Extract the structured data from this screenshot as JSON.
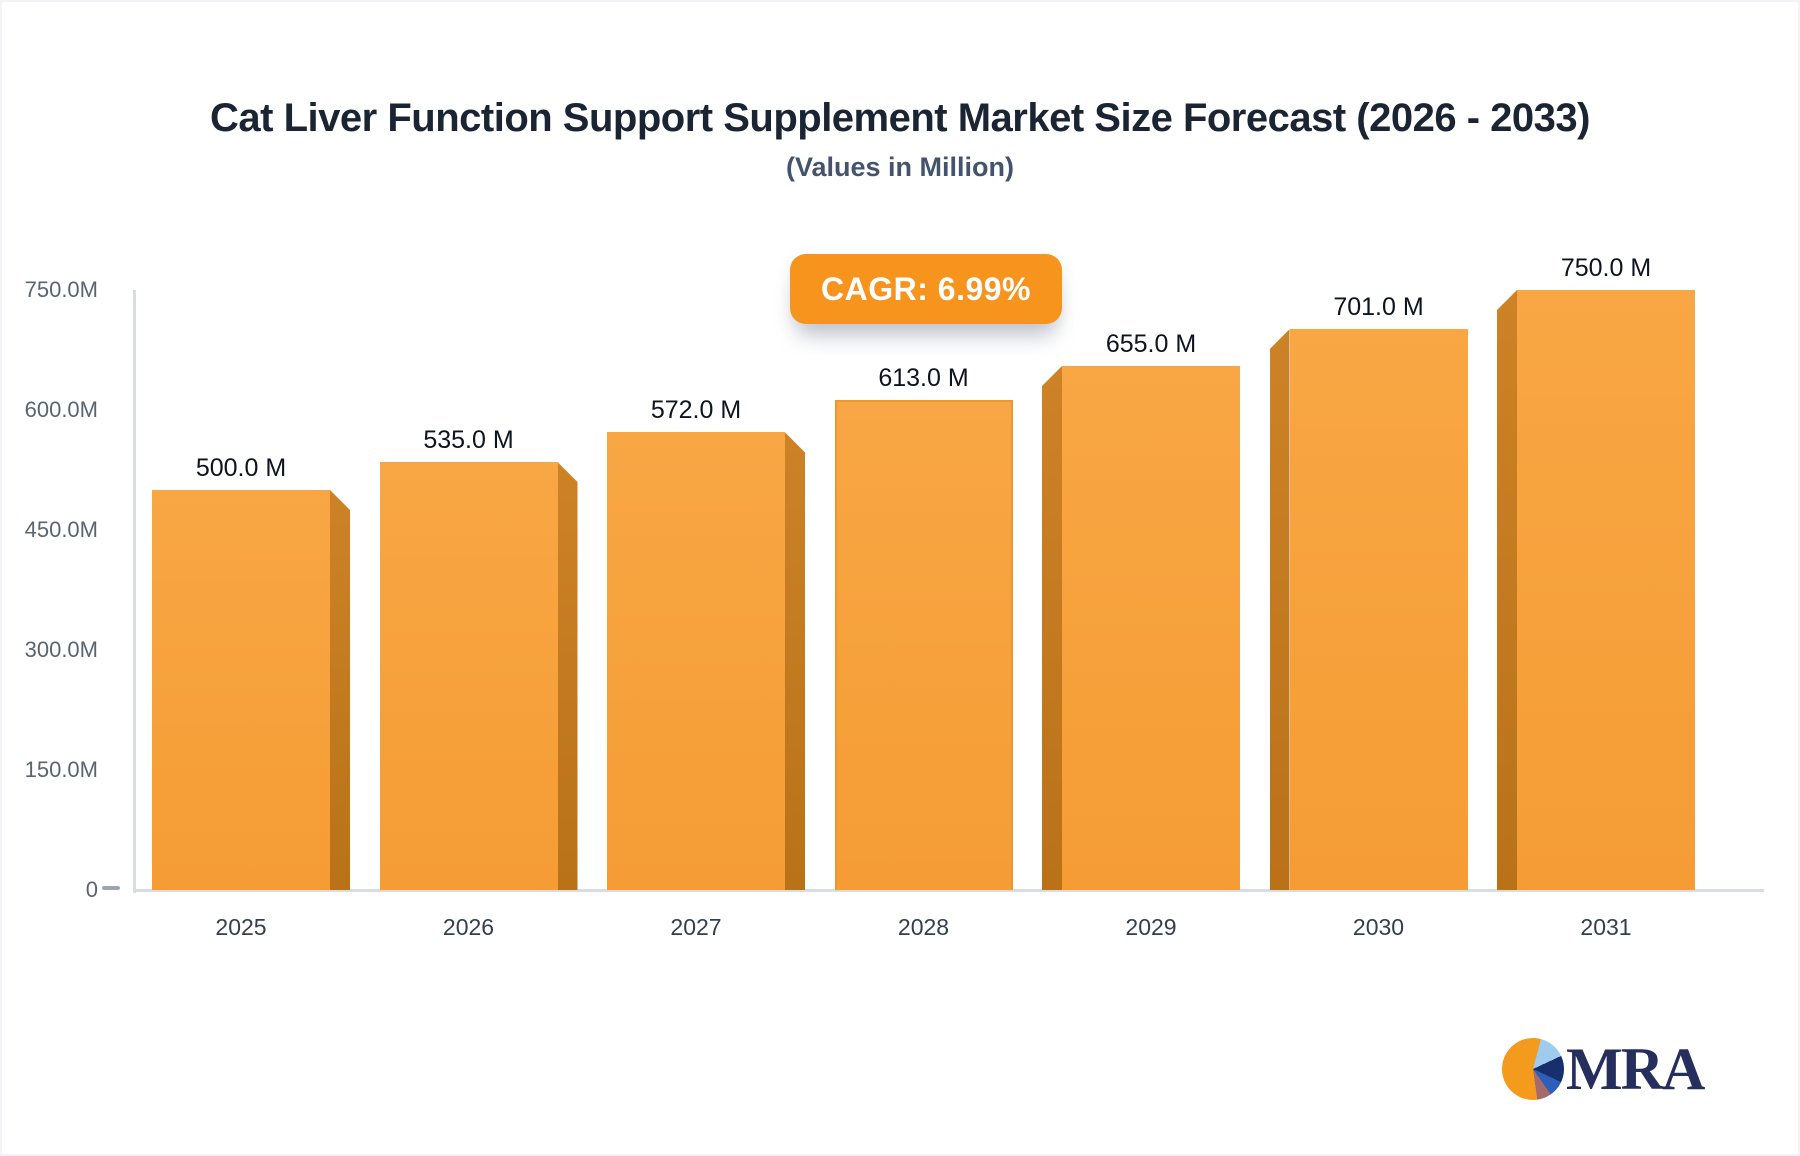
{
  "header": {
    "title": "Cat Liver Function Support Supplement Market Size Forecast (2026 - 2033)",
    "subtitle": "(Values in Million)"
  },
  "badge": {
    "label": "CAGR: 6.99%",
    "color": "#f7941e"
  },
  "logo": {
    "text": "MRA",
    "navy": "#262e5d",
    "orange": "#f49a1d"
  },
  "chart_data": {
    "type": "bar",
    "title": "Cat Liver Function Support Supplement Market Size Forecast (2026 - 2033)",
    "subtitle": "(Values in Million)",
    "categories": [
      "2025",
      "2026",
      "2027",
      "2028",
      "2029",
      "2030",
      "2031"
    ],
    "values": [
      500,
      535,
      572,
      613,
      655,
      701,
      750
    ],
    "value_labels": [
      "500.0 M",
      "535.0 M",
      "572.0 M",
      "613.0 M",
      "655.0 M",
      "701.0 M",
      "750.0 M"
    ],
    "y_ticks": [
      {
        "label": "750.0M",
        "value": 750
      },
      {
        "label": "600.0M",
        "value": 600
      },
      {
        "label": "450.0M",
        "value": 450
      },
      {
        "label": "300.0M",
        "value": 300
      },
      {
        "label": "150.0M",
        "value": 150
      },
      {
        "label": "0",
        "value": 0
      }
    ],
    "ylim": [
      0,
      750
    ],
    "xlabel": "",
    "ylabel": "",
    "grid": false,
    "legend": "none",
    "bar_color": "#f6a03c",
    "bar_side_color": "#c0781f",
    "cagr": "6.99%"
  }
}
